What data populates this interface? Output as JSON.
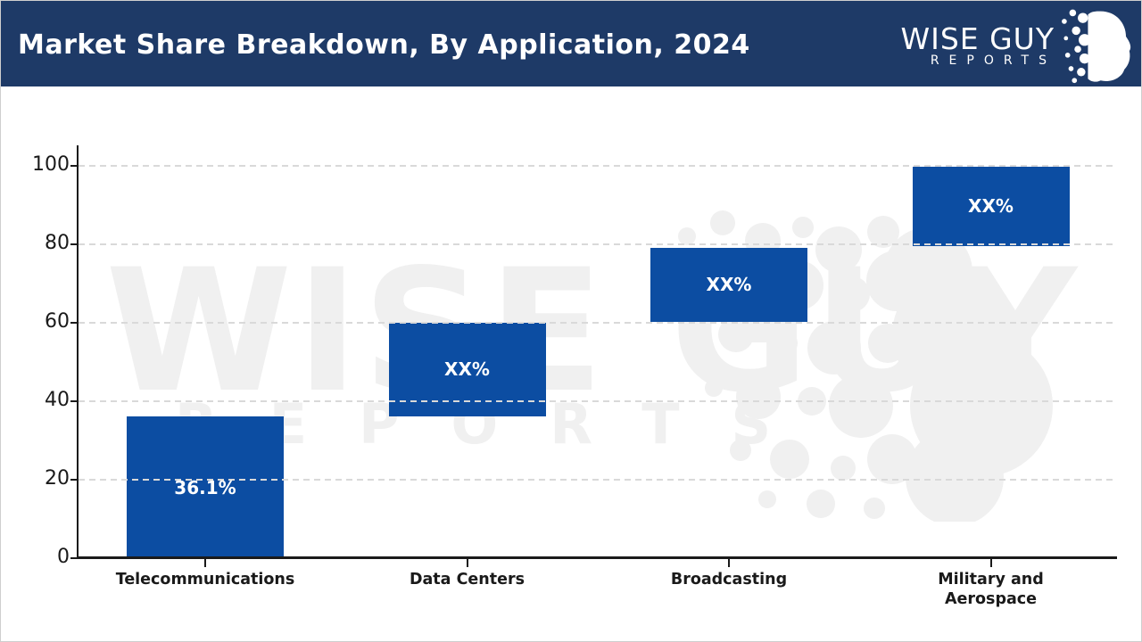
{
  "colors": {
    "headerBg": "#1e3a67",
    "bar": "#0c4da2",
    "grid": "#d9d9d9",
    "axis": "#1a1a1a",
    "barLabel": "#ffffff",
    "watermark": "#f0f0f0"
  },
  "header": {
    "title": "Market Share Breakdown, By Application, 2024",
    "logo_line1": "WISE GUY",
    "logo_line2": "REPORTS"
  },
  "watermark": {
    "line1": "WISE GUY",
    "line2": "REPORTS"
  },
  "chart_data": {
    "type": "bar",
    "subtype": "waterfall",
    "title": "Market Share Breakdown, By Application, 2024",
    "categories": [
      "Telecommunications",
      "Data Centers",
      "Broadcasting",
      "Military and Aerospace"
    ],
    "segments": [
      {
        "category": "Telecommunications",
        "start": 0,
        "end": 36.1,
        "label": "36.1%"
      },
      {
        "category": "Data Centers",
        "start": 36.1,
        "end": 60.1,
        "label": "XX%"
      },
      {
        "category": "Broadcasting",
        "start": 60.3,
        "end": 79.1,
        "label": "XX%"
      },
      {
        "category": "Military and Aerospace",
        "start": 79.6,
        "end": 99.8,
        "label": "XX%"
      }
    ],
    "yticks": [
      0,
      20,
      40,
      60,
      80,
      100
    ],
    "ylim": [
      0,
      105
    ],
    "xlabel": "",
    "ylabel": "",
    "grid": "horizontal-dashed",
    "legend": "none",
    "bar_color": "#0c4da2",
    "value_label_color": "#ffffff"
  }
}
